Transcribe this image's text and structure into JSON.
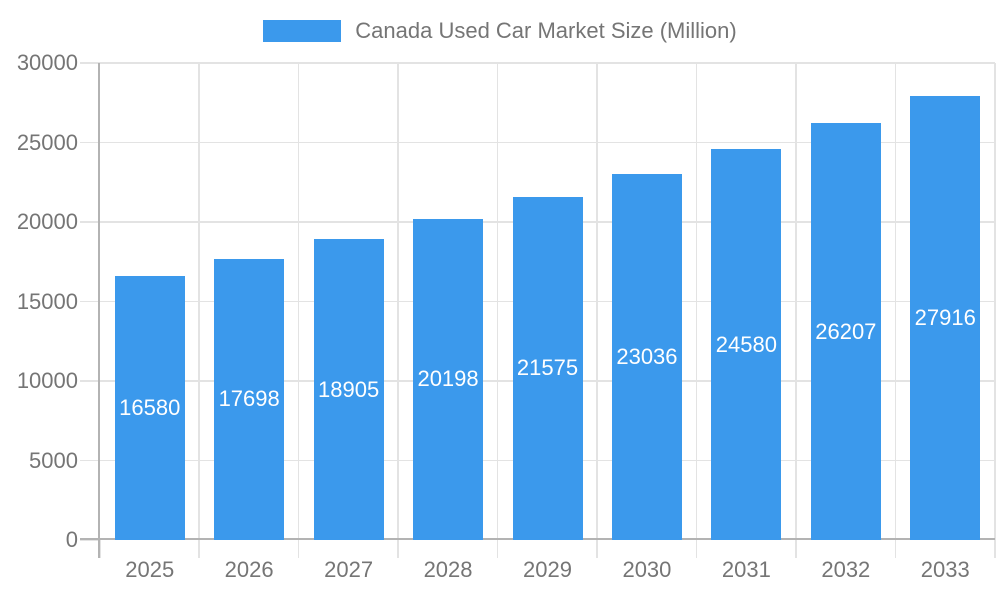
{
  "page": {
    "background": "#FFFFFF"
  },
  "legend": {
    "label": "Canada Used Car Market Size (Million)"
  },
  "chart_data": {
    "type": "bar",
    "title": "Canada Used Car Market Size (Million)",
    "categories": [
      "2025",
      "2026",
      "2027",
      "2028",
      "2029",
      "2030",
      "2031",
      "2032",
      "2033"
    ],
    "values": [
      16580,
      17698,
      18905,
      20198,
      21575,
      23036,
      24580,
      26207,
      27916
    ],
    "xlabel": "",
    "ylabel": "",
    "ylim": [
      0,
      30000
    ],
    "ytick_step": 5000,
    "yticks": [
      0,
      5000,
      10000,
      15000,
      20000,
      25000,
      30000
    ],
    "grid": true,
    "legend_position": "top-center",
    "value_labels": "inside-middle",
    "colors": {
      "bar": "#3B99EC",
      "axis_text": "#757575",
      "bar_label_text": "#FFFFFF",
      "gridline": "#E3E3E3",
      "axis_line": "#B3B3B3",
      "background": "#FFFFFF"
    }
  }
}
